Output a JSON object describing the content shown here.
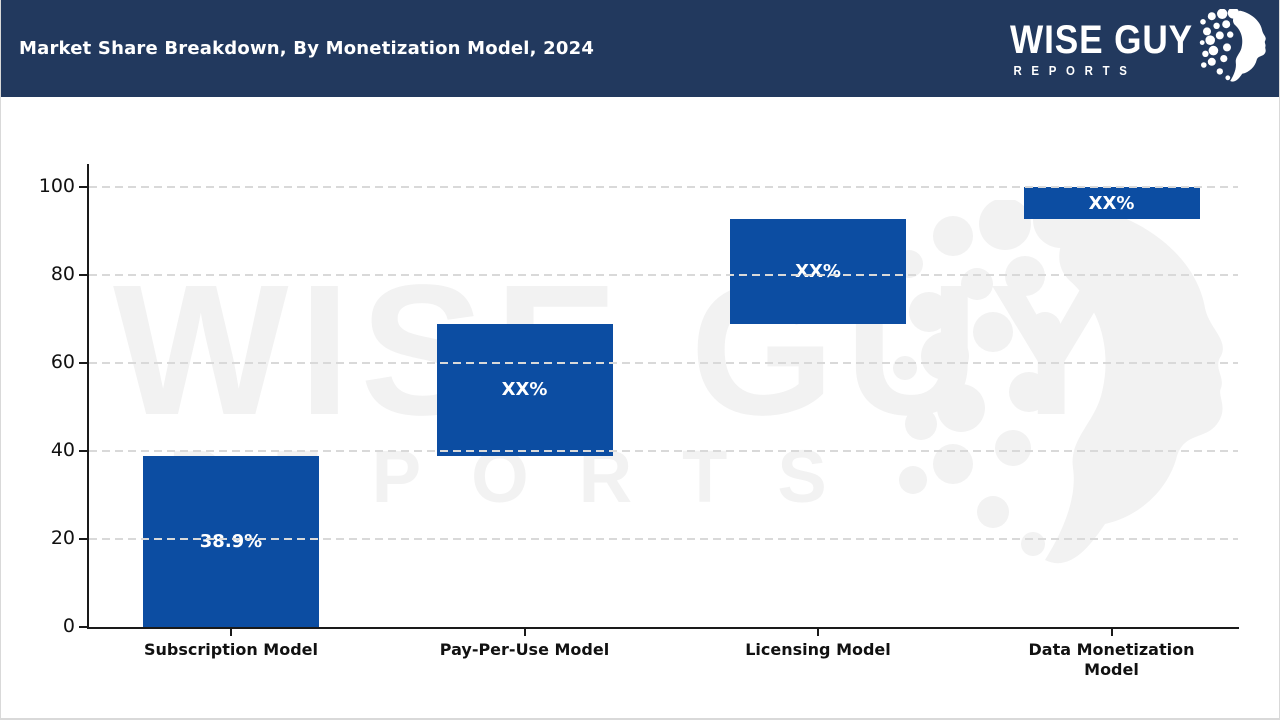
{
  "header": {
    "title": "Market Share Breakdown, By Monetization Model, 2024",
    "logo": {
      "line1": "WISE GUY",
      "line2": "REPORTS"
    }
  },
  "icons": {
    "logo_head": "face-profile-made-of-dots",
    "watermark_face": "face-profile-made-of-dots"
  },
  "watermark": {
    "line1": "WISE GUY",
    "line2": "REPORTS"
  },
  "colors": {
    "header_bg": "#22395E",
    "bar": "#0C4DA2",
    "grid": "#D9D9D9",
    "axis": "#1A1A1A",
    "watermark": "#F2F2F2",
    "title_text": "#FFFFFF",
    "bar_label_text": "#FFFFFF"
  },
  "chart_data": {
    "type": "bar",
    "subtype": "waterfall",
    "title": "Market Share Breakdown, By Monetization Model, 2024",
    "xlabel": "",
    "ylabel": "",
    "categories": [
      "Subscription Model",
      "Pay-Per-Use Model",
      "Licensing Model",
      "Data Monetization Model"
    ],
    "bars": [
      {
        "category": "Subscription Model",
        "start": 0,
        "end": 38.9,
        "label": "38.9%"
      },
      {
        "category": "Pay-Per-Use Model",
        "start": 38.9,
        "end": 68.9,
        "label": "XX%"
      },
      {
        "category": "Licensing Model",
        "start": 68.9,
        "end": 92.7,
        "label": "XX%"
      },
      {
        "category": "Data Monetization Model",
        "start": 92.7,
        "end": 100,
        "label": "XX%"
      }
    ],
    "yticks": [
      0,
      20,
      40,
      60,
      80,
      100
    ],
    "ylim": [
      0,
      105
    ],
    "grid": {
      "axis": "y",
      "style": "dashed",
      "on": true,
      "above_bars": true
    },
    "legend": "none",
    "bar_color": "#0C4DA2"
  }
}
